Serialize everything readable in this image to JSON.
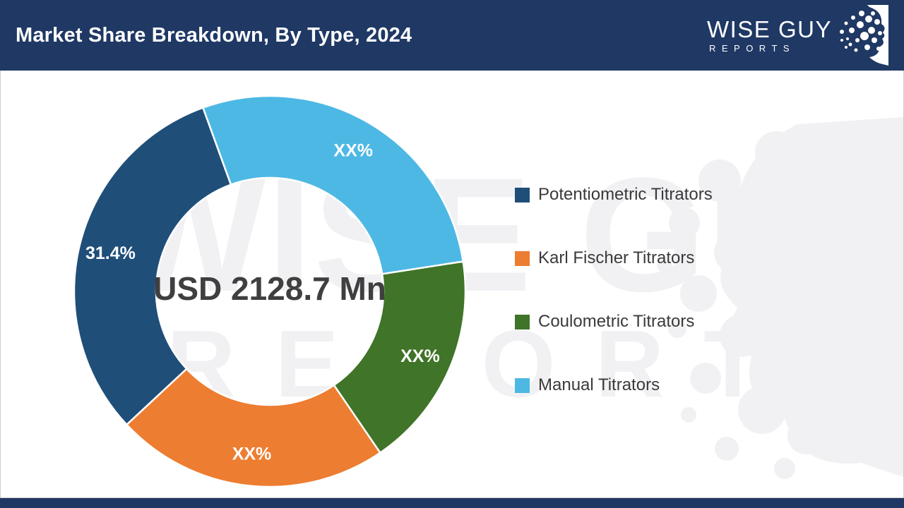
{
  "header": {
    "title": "Market Share Breakdown, By Type, 2024",
    "logo": {
      "name": "WISE GUY",
      "sub": "REPORTS"
    }
  },
  "watermark": {
    "line1": "WISE GUY",
    "line2": "REPORTS"
  },
  "chart_data": {
    "type": "donut",
    "title": "Market Share Breakdown, By Type, 2024",
    "center_label": "USD 2128.7 Mn",
    "value_unit": "percent market share",
    "start_deg": 227,
    "draw_order": [
      0,
      3,
      2,
      1
    ],
    "legend_position": "right",
    "segments": [
      {
        "label": "Potentiometric Titrators",
        "value": 31.4,
        "display_label": "31.4%",
        "color": "#1f4e79"
      },
      {
        "label": "Karl Fischer Titrators",
        "value": 22.6,
        "display_label": "XX%",
        "color": "#ed7d31"
      },
      {
        "label": "Coulometric Titrators",
        "value": 17.9,
        "display_label": "XX%",
        "color": "#407428"
      },
      {
        "label": "Manual Titrators",
        "value": 28.1,
        "display_label": "XX%",
        "color": "#4db8e4"
      }
    ]
  },
  "colors": {
    "header_bg": "#1f3864",
    "footer_bg": "#1f3864",
    "title_text": "#ffffff",
    "legend_text": "#3a3a3a",
    "center_text": "#3f3f3f",
    "segment_divider": "#ffffff",
    "watermark": "#f1f1f4"
  }
}
